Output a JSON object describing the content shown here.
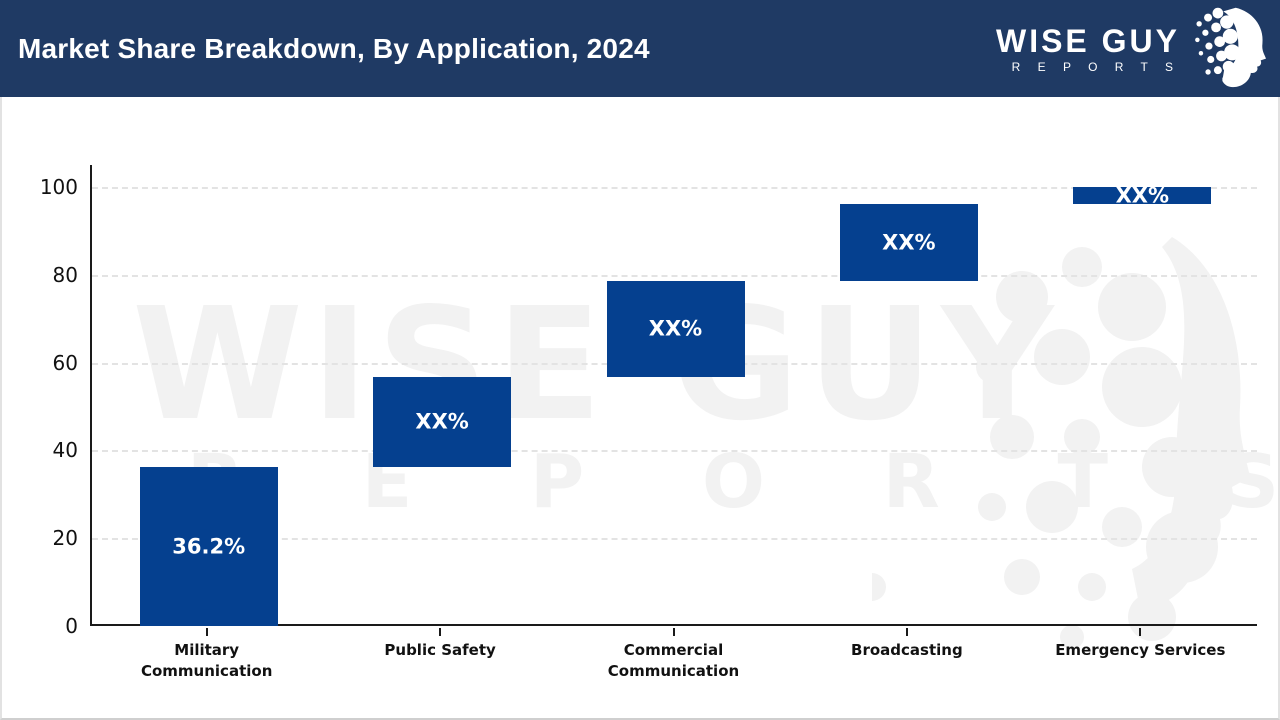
{
  "header": {
    "title": "Market Share Breakdown, By Application, 2024",
    "logo": {
      "brand": "WISE GUY",
      "sub": "R E P O R T S"
    }
  },
  "watermark": {
    "brand": "WISE GUY",
    "sub": "R E P O R T S"
  },
  "colors": {
    "header_bg": "#1f3a64",
    "bar": "#05408f",
    "bar_label": "#ffffff",
    "axis": "#1a1a1a",
    "grid": "#e3e3e3",
    "watermark": "#f2f2f2"
  },
  "chart_data": {
    "type": "bar",
    "subtype": "floating-waterfall-segments",
    "title": "Market Share Breakdown, By Application, 2024",
    "categories": [
      "Military Communication",
      "Public Safety",
      "Commercial Communication",
      "Broadcasting",
      "Emergency Services"
    ],
    "segments": [
      {
        "start": 0,
        "end": 36.2,
        "label": "36.2%"
      },
      {
        "start": 36.2,
        "end": 56.7,
        "label": "XX%"
      },
      {
        "start": 56.7,
        "end": 78.6,
        "label": "XX%"
      },
      {
        "start": 78.6,
        "end": 96.1,
        "label": "XX%"
      },
      {
        "start": 96.1,
        "end": 100,
        "label": "XX%"
      }
    ],
    "xlabel": "",
    "ylabel": "",
    "ylim": [
      0,
      100
    ],
    "yticks": [
      0,
      20,
      40,
      60,
      80,
      100
    ],
    "grid": "horizontal-dashed",
    "legend": "none"
  }
}
